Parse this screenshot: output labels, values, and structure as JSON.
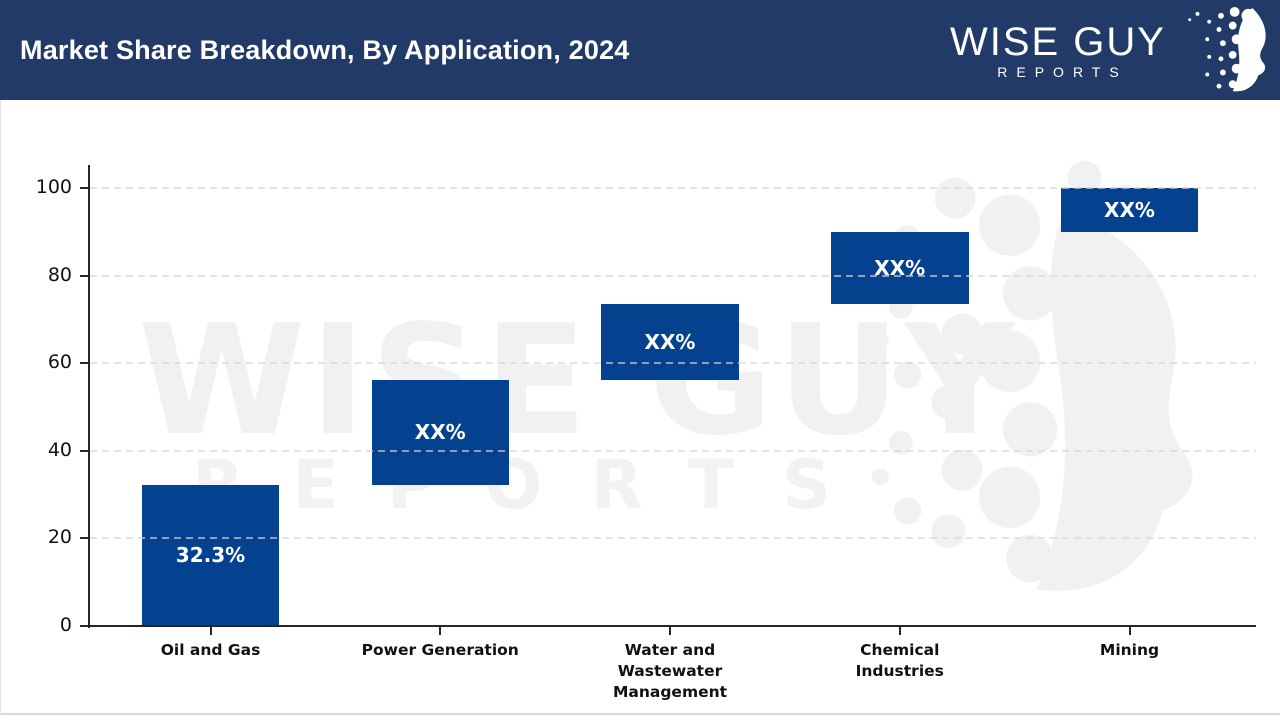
{
  "header": {
    "title": "Market Share Breakdown, By Application, 2024",
    "logo": {
      "wordmark": "WISE GUY",
      "subtext": "REPORTS"
    }
  },
  "watermark": {
    "wordmark": "WISE GUY",
    "subtext": "REPORTS"
  },
  "chart_data": {
    "type": "bar",
    "subtype": "waterfall",
    "title": "Market Share Breakdown, By Application, 2024",
    "categories": [
      "Oil and Gas",
      "Power Generation",
      "Water and Wastewater Management",
      "Chemical Industries",
      "Mining"
    ],
    "category_label_lines": [
      [
        "Oil and Gas"
      ],
      [
        "Power Generation"
      ],
      [
        "Water and",
        "Wastewater",
        "Management"
      ],
      [
        "Chemical",
        "Industries"
      ],
      [
        "Mining"
      ]
    ],
    "segments": [
      {
        "category": "Oil and Gas",
        "start": 0,
        "end": 32.3,
        "label": "32.3%"
      },
      {
        "category": "Power Generation",
        "start": 32.3,
        "end": 56.1,
        "label": "XX%"
      },
      {
        "category": "Water and Wastewater Management",
        "start": 56.1,
        "end": 73.5,
        "label": "XX%"
      },
      {
        "category": "Chemical Industries",
        "start": 73.5,
        "end": 89.9,
        "label": "XX%"
      },
      {
        "category": "Mining",
        "start": 89.9,
        "end": 100,
        "label": "XX%"
      }
    ],
    "xlabel": "",
    "ylabel": "",
    "ylim": [
      0,
      100
    ],
    "yticks": [
      0,
      20,
      40,
      60,
      80,
      100
    ],
    "grid": "horizontal-dashed",
    "legend": "none",
    "bar_color": "#04418f",
    "bar_label_color": "#ffffff",
    "axis_color": "#262626",
    "tick_label_color": "#111111",
    "gridline_color": "#d9d9d9"
  },
  "colors": {
    "header_background": "#223a67",
    "header_text": "#ffffff",
    "page_background": "#ffffff",
    "watermark": "#f1f1f1",
    "footer_line": "#d9d9d9"
  }
}
